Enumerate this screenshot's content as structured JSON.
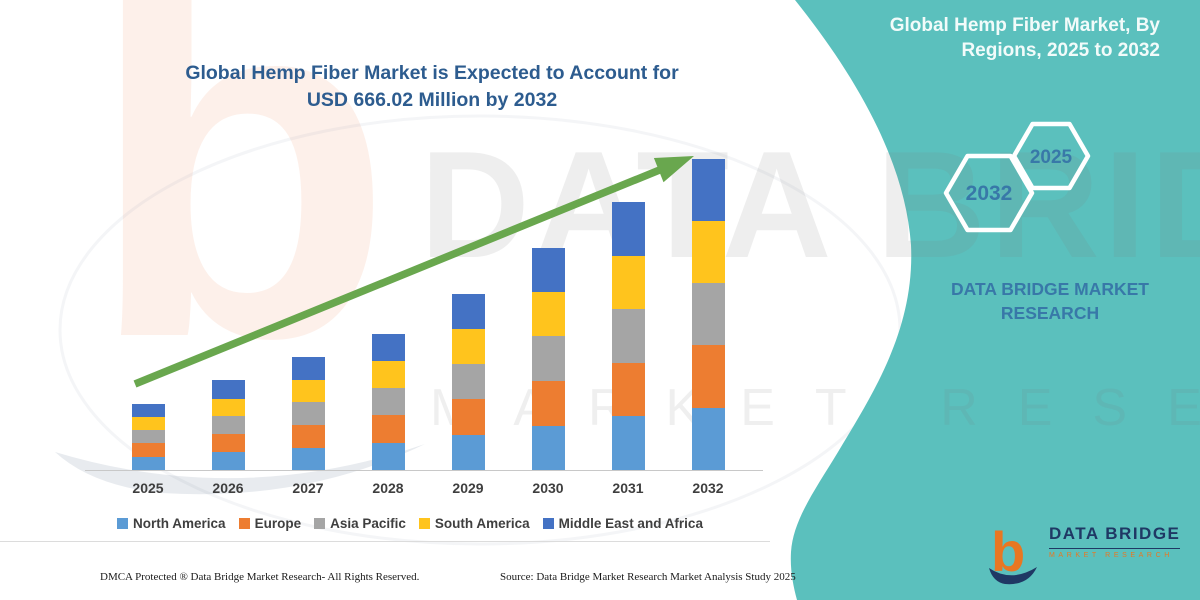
{
  "colors": {
    "teal_panel": "#5BC0BD",
    "title_blue": "#2D5C8F",
    "panel_text_blue": "#3878A8",
    "logo_navy": "#1F3864",
    "logo_orange": "#E87722",
    "arrow_green": "#69A74E",
    "axis_gray": "#C8C8C8",
    "label_gray": "#3F3F3F"
  },
  "chart_data": {
    "type": "bar",
    "stacked": true,
    "title": "Global Hemp Fiber Market is Expected to Account for USD 666.02 Million by 2032",
    "units": "USD Million",
    "categories": [
      "2025",
      "2026",
      "2027",
      "2028",
      "2029",
      "2030",
      "2031",
      "2032"
    ],
    "series": [
      {
        "name": "North America",
        "color": "#5B9BD5",
        "values": [
          28,
          38,
          48,
          58,
          75,
          95,
          115,
          133
        ]
      },
      {
        "name": "Europe",
        "color": "#ED7D31",
        "values": [
          29,
          39,
          49,
          59,
          76,
          96,
          115,
          134
        ]
      },
      {
        "name": "Asia Pacific",
        "color": "#A5A5A5",
        "values": [
          28,
          38,
          48,
          58,
          75,
          95,
          114,
          133
        ]
      },
      {
        "name": "South America",
        "color": "#FFC41D",
        "values": [
          29,
          38,
          48,
          58,
          76,
          95,
          115,
          133
        ]
      },
      {
        "name": "Middle East and Africa",
        "color": "#4472C4",
        "values": [
          28,
          39,
          48,
          58,
          75,
          95,
          114,
          133.02
        ]
      }
    ],
    "totals": [
      142,
      192,
      241,
      291,
      377,
      476,
      573,
      666.02
    ],
    "ylim": [
      0,
      700
    ],
    "grid": false,
    "legend_position": "bottom",
    "annotations": [
      "upward green trend arrow from 2025 to 2032"
    ]
  },
  "right_panel": {
    "heading": "Global Hemp Fiber Market, By Regions, 2025 to 2032",
    "hexagon_back_label": "2032",
    "hexagon_front_label": "2025",
    "brand": "DATA BRIDGE MARKET RESEARCH"
  },
  "logo": {
    "letter": "b",
    "brand": "DATA BRIDGE",
    "tagline": "MARKET RESEARCH"
  },
  "watermark": {
    "letter": "b",
    "brand": "DATA BRIDGE",
    "tagline": "MARKET RESEARCH"
  },
  "footer": {
    "dmca": "DMCA Protected ® Data Bridge Market Research-  All Rights Reserved.",
    "source": "Source: Data Bridge Market Research  Market Analysis Study 2025"
  }
}
